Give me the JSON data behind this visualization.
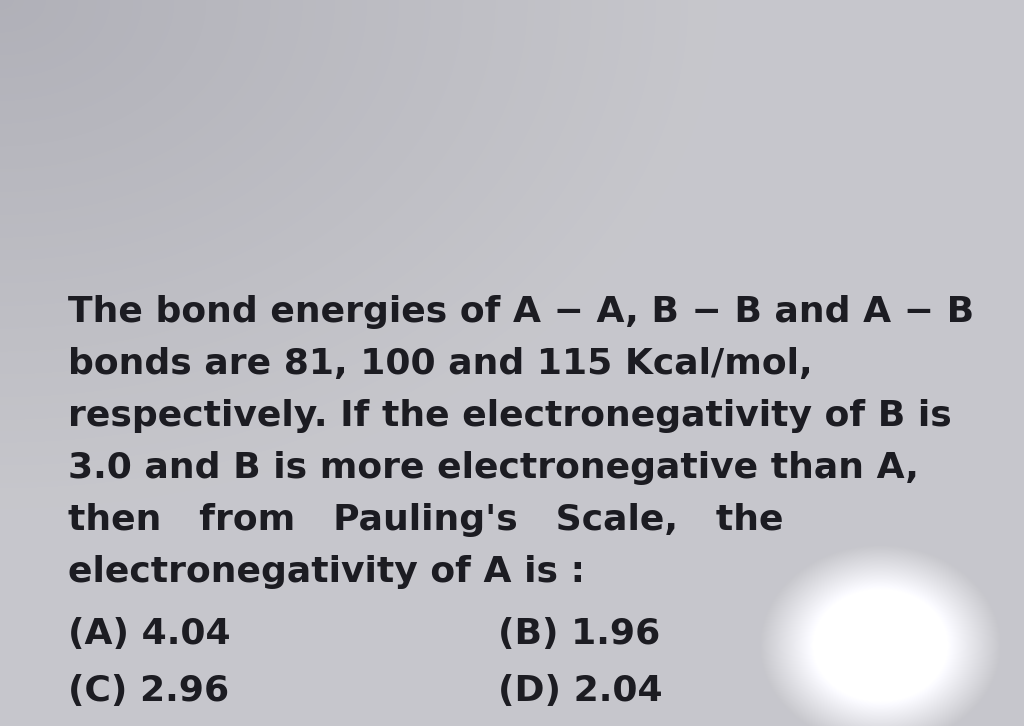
{
  "background_base": "#c8c8cc",
  "text_color": "#1c1c22",
  "line1": "The bond energies of A − A, B − B and A − B",
  "line2": "bonds are 81, 100 and 115 Kcal/mol,",
  "line3": "respectively. If the electronegativity of B is",
  "line4": "3.0 and B is more electronegative than A,",
  "line5": "then   from   Pauling's   Scale,   the",
  "line6": "electronegativity of A is :",
  "opt_A_label": "(A) 4.04",
  "opt_B_label": "(B) 1.96",
  "opt_C_label": "(C) 2.96",
  "opt_D_label": "(D) 2.04",
  "font_size_main": 26,
  "font_size_options": 26
}
